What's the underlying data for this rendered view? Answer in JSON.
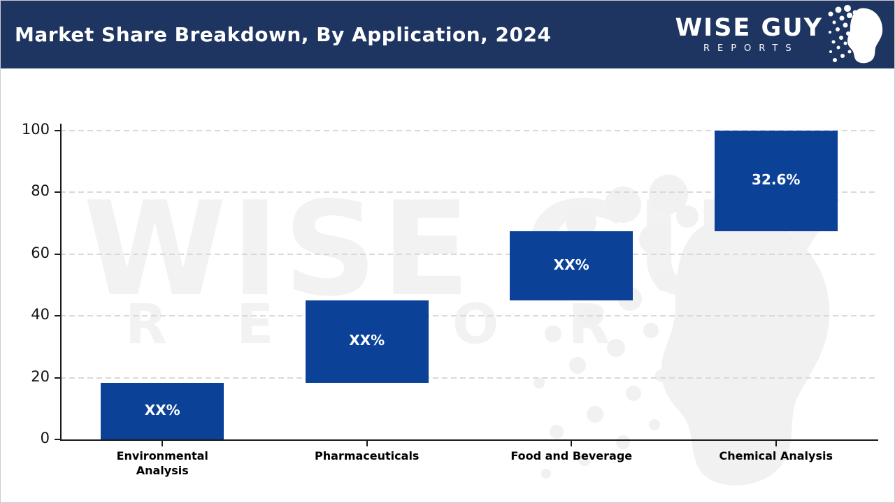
{
  "header": {
    "title": "Market Share Breakdown, By Application, 2024",
    "logo": {
      "name": "WISE GUY",
      "sub": "REPORTS"
    }
  },
  "watermark": {
    "line1": "WISE GUY",
    "line2": "R E P O R T S"
  },
  "colors": {
    "header_bg": "#1e3461",
    "bar_fill": "#0b4298",
    "grid": "#d9d9d9",
    "axis": "#1a1a1a",
    "watermark": "#f2f2f2",
    "label_on_bar": "#ffffff",
    "border": "#cccccc"
  },
  "chart_data": {
    "type": "bar",
    "subtype": "waterfall",
    "title": "Market Share Breakdown, By Application, 2024",
    "categories": [
      "Environmental Analysis",
      "Pharmaceuticals",
      "Food and Beverage",
      "Chemical Analysis"
    ],
    "segments": [
      {
        "category": "Environmental Analysis",
        "start": 0,
        "end": 18.3,
        "label": "XX%"
      },
      {
        "category": "Pharmaceuticals",
        "start": 18.3,
        "end": 45.0,
        "label": "XX%"
      },
      {
        "category": "Food and Beverage",
        "start": 45.0,
        "end": 67.4,
        "label": "XX%"
      },
      {
        "category": "Chemical Analysis",
        "start": 67.4,
        "end": 100.0,
        "label": "32.6%"
      }
    ],
    "ylim": [
      0,
      100
    ],
    "yticks": [
      0,
      20,
      40,
      60,
      80,
      100
    ],
    "xlabel": "",
    "ylabel": "",
    "grid": "dashed-horizontal",
    "legend": "none"
  }
}
